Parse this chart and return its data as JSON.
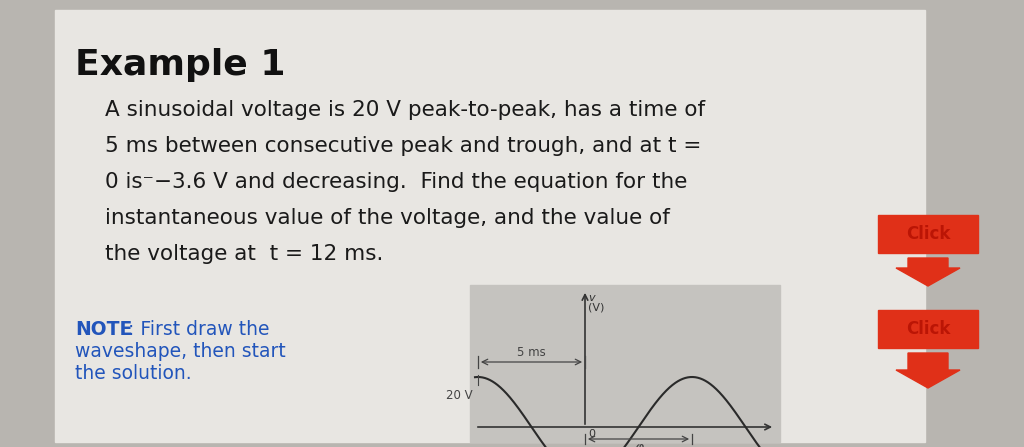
{
  "bg_outer": "#b8b5b0",
  "bg_panel": "#e8e6e2",
  "bg_graph": "#c5c3bf",
  "title": "Example 1",
  "title_fontsize": 26,
  "body_lines": [
    "A sinusoidal voltage is 20 V peak-to-peak, has a time of",
    "5 ms between consecutive peak and trough, and at t =",
    "0 is⁻−3.6 V and decreasing.  Find the equation for the",
    "instantaneous value of the voltage, and the value of",
    "the voltage at  t = 12 ms."
  ],
  "body_fontsize": 15.5,
  "note_color": "#2255bb",
  "note_fontsize": 13.5,
  "click_color": "#e03018",
  "click_fontsize": 12,
  "wave_color": "#2a2a2a",
  "axis_color": "#333333",
  "annotation_color": "#444444"
}
